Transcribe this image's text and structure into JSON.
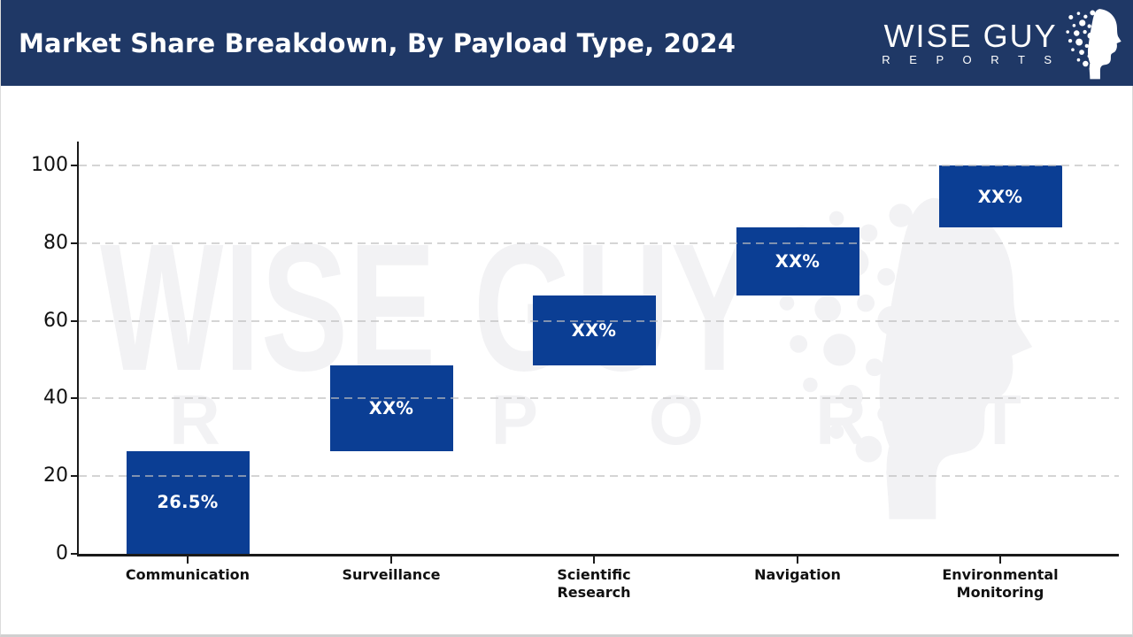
{
  "header": {
    "title": "Market Share Breakdown, By Payload Type, 2024",
    "logo": {
      "line1": "WISE GUY",
      "line2": "R E P O R T S"
    }
  },
  "watermark": {
    "line1": "WISE GUY",
    "line2": "R E P O R T S"
  },
  "colors": {
    "header_bg": "#1f3866",
    "bar_blue": "#0b3e94",
    "axis_black": "#1a1a1a",
    "gridline_gray": "#d7d7d7",
    "watermark_gray": "#f2f2f4"
  },
  "chart_data": {
    "type": "bar",
    "subtype": "waterfall",
    "title": "Market Share Breakdown, By Payload Type, 2024",
    "categories": [
      "Communication",
      "Surveillance",
      "Scientific Research",
      "Navigation",
      "Environmental Monitoring"
    ],
    "segments": [
      {
        "category": "Communication",
        "start": 0,
        "end": 26.5,
        "value_label": "26.5%"
      },
      {
        "category": "Surveillance",
        "start": 26.5,
        "end": 48.5,
        "value_label": "XX%"
      },
      {
        "category": "Scientific Research",
        "start": 48.5,
        "end": 66.5,
        "value_label": "XX%"
      },
      {
        "category": "Navigation",
        "start": 66.5,
        "end": 84,
        "value_label": "XX%"
      },
      {
        "category": "Environmental Monitoring",
        "start": 84,
        "end": 100,
        "value_label": "XX%"
      }
    ],
    "y_ticks": [
      0,
      20,
      40,
      60,
      80,
      100
    ],
    "ylim": [
      0,
      100
    ],
    "xlabel": "",
    "ylabel": "",
    "grid": true,
    "grid_style": "dashed",
    "legend": "none",
    "bar_color": "#0b3e94"
  }
}
